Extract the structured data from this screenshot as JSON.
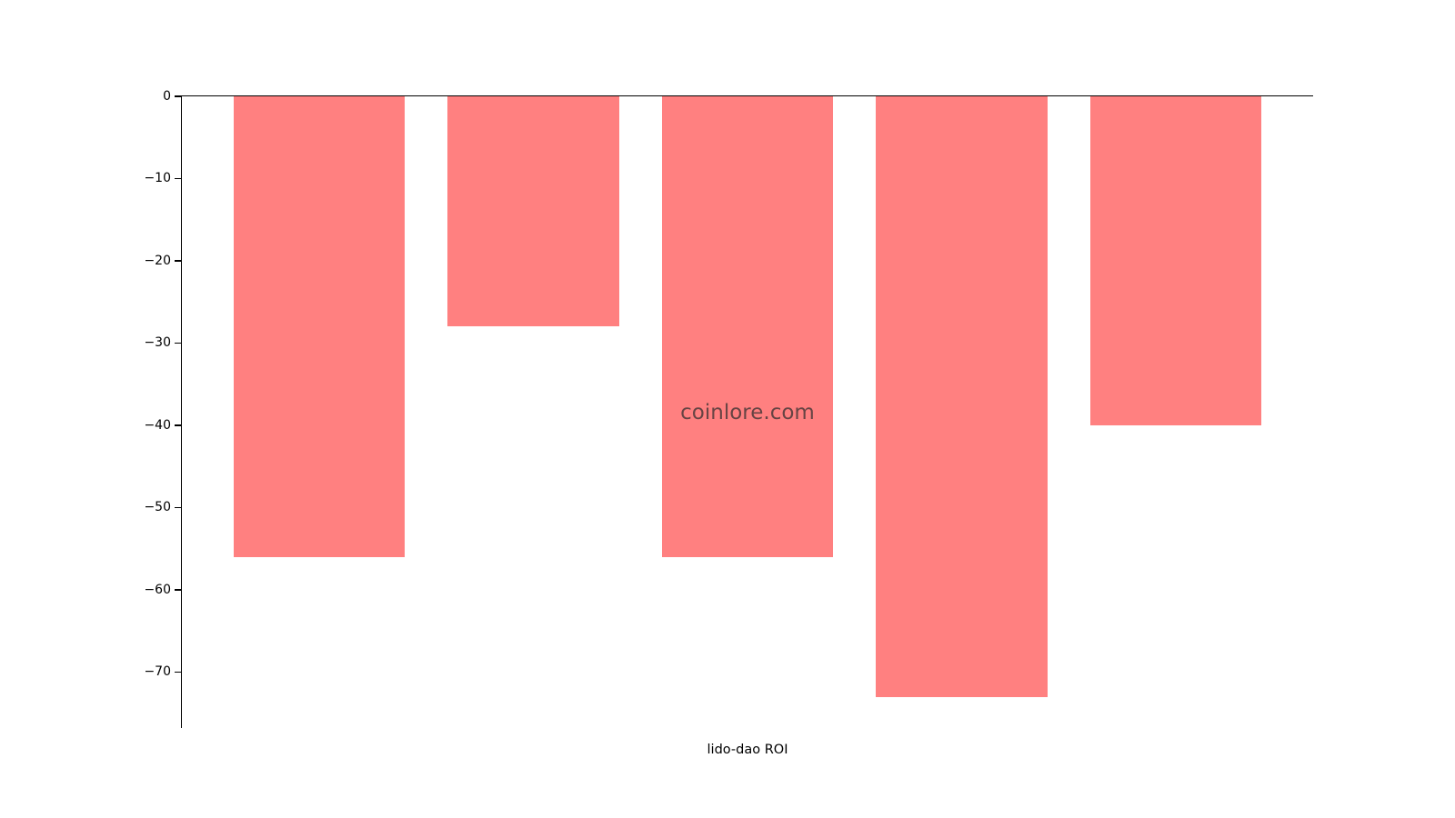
{
  "page": {
    "background_color": "#ffffff"
  },
  "chart_data": {
    "type": "bar",
    "title": "",
    "xlabel": "lido-dao ROI",
    "ylabel": "",
    "watermark": "coinlore.com",
    "x": [
      0,
      1,
      2,
      3,
      4
    ],
    "values": [
      -56,
      -28,
      -56,
      -73,
      -40
    ],
    "series": [
      {
        "name": "lido-dao ROI",
        "values": [
          -56,
          -28,
          -56,
          -73,
          -40
        ]
      }
    ],
    "bar_width": 0.8,
    "xlim": [
      -0.64,
      4.64
    ],
    "ylim": [
      -76.8,
      0
    ],
    "yticks": [
      {
        "value": 0,
        "label": "0"
      },
      {
        "value": -10,
        "label": "−10"
      },
      {
        "value": -20,
        "label": "−20"
      },
      {
        "value": -30,
        "label": "−30"
      },
      {
        "value": -40,
        "label": "−40"
      },
      {
        "value": -50,
        "label": "−50"
      },
      {
        "value": -60,
        "label": "−60"
      },
      {
        "value": -70,
        "label": "−70"
      }
    ],
    "grid": false,
    "legend": false,
    "colors": {
      "bar": "#ff8080",
      "axis": "#000000",
      "tick_label": "#000000",
      "xlabel": "#000000",
      "watermark": "rgba(45,45,45,0.72)"
    }
  }
}
